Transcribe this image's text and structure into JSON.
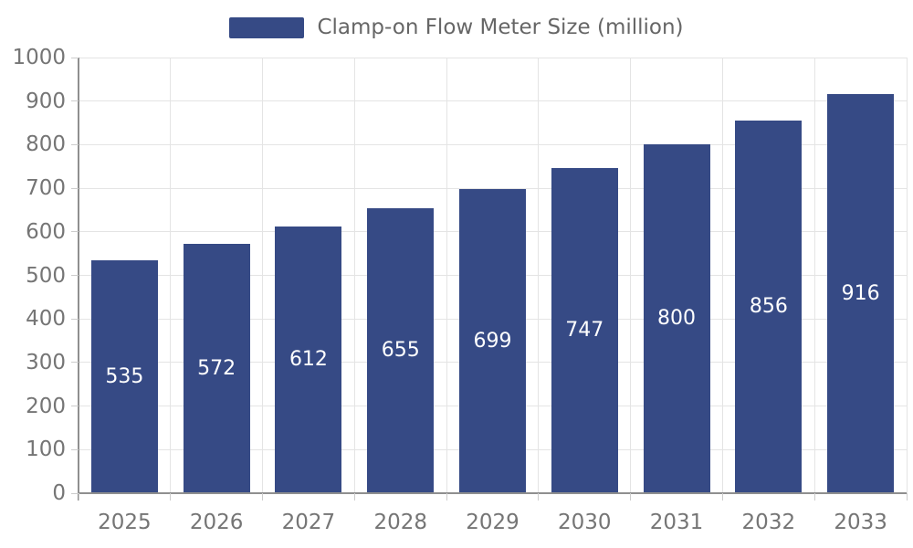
{
  "chart_data": {
    "type": "bar",
    "title": "Clamp-on Flow Meter Size (million)",
    "categories": [
      "2025",
      "2026",
      "2027",
      "2028",
      "2029",
      "2030",
      "2031",
      "2032",
      "2033"
    ],
    "values": [
      535,
      572,
      612,
      655,
      699,
      747,
      800,
      856,
      916
    ],
    "xlabel": "",
    "ylabel": "",
    "ylim": [
      0,
      1000
    ],
    "ytick_interval": 100,
    "ytick_labels": [
      "0",
      "100",
      "200",
      "300",
      "400",
      "500",
      "600",
      "700",
      "800",
      "900",
      "1000"
    ],
    "grid": true,
    "legend_position": "top",
    "value_labels_position": "inside-middle",
    "colors": {
      "bar": "#364a85",
      "value_label": "#ffffff",
      "axis_text": "#757575",
      "legend_text": "#666666",
      "gridline": "#e4e4e4",
      "axis_line": "#8f8f8f",
      "tick": "#cccccc",
      "background": "#ffffff"
    }
  }
}
